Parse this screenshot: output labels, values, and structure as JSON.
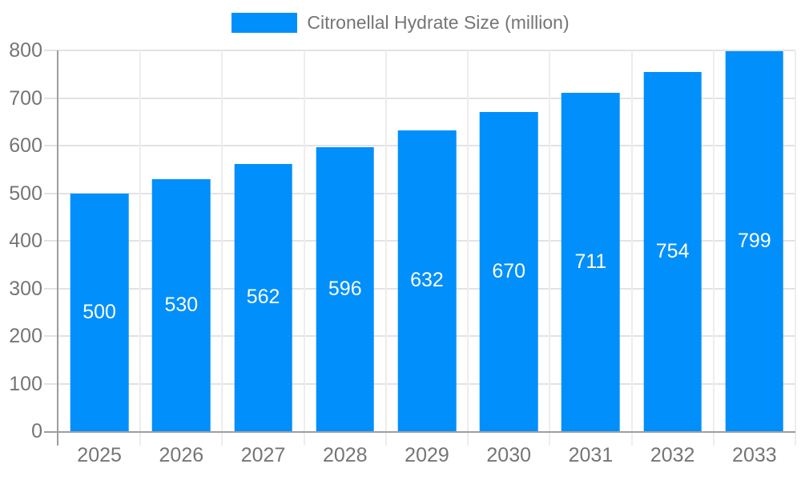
{
  "legend": {
    "label": "Citronellal Hydrate Size (million)"
  },
  "colors": {
    "bar": "#008FFB",
    "axis_text": "#757575",
    "value_label": "#FFFFFF",
    "grid_horizontal": "#E3E3E3",
    "grid_vertical": "#EDEDED",
    "axis_line": "#9E9E9E",
    "background": "#FFFFFF"
  },
  "chart_data": {
    "type": "bar",
    "title": "Citronellal Hydrate Size (million)",
    "categories": [
      "2025",
      "2026",
      "2027",
      "2028",
      "2029",
      "2030",
      "2031",
      "2032",
      "2033"
    ],
    "values": [
      500,
      530,
      562,
      596,
      632,
      670,
      711,
      754,
      799
    ],
    "xlabel": "",
    "ylabel": "",
    "ylim": [
      0,
      800
    ],
    "ytick_step": 100,
    "grid": true,
    "legend_position": "top",
    "value_label_position": "inside-center",
    "bar_width_fraction": 0.71
  }
}
